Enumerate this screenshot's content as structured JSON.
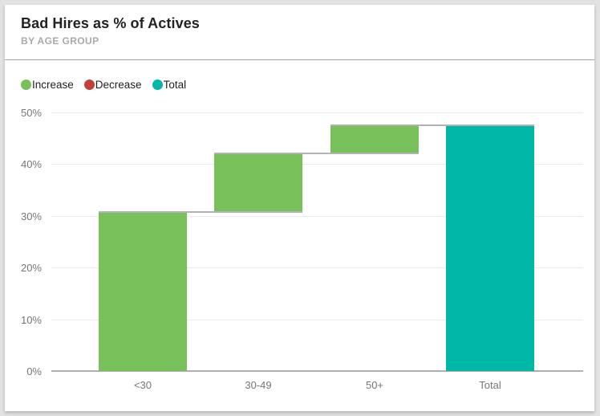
{
  "card": {
    "title": "Bad Hires as % of Actives",
    "subtitle": "BY AGE GROUP"
  },
  "legend": {
    "items": [
      {
        "name": "increase",
        "label": "Increase",
        "color": "#77c05a"
      },
      {
        "name": "decrease",
        "label": "Decrease",
        "color": "#c2423b"
      },
      {
        "name": "total",
        "label": "Total",
        "color": "#00b7a8"
      }
    ]
  },
  "chart_data": {
    "type": "bar",
    "variant": "waterfall",
    "title": "Bad Hires as % of Actives",
    "subtitle": "BY AGE GROUP",
    "categories": [
      "<30",
      "30-49",
      "50+",
      "Total"
    ],
    "steps": [
      {
        "category": "<30",
        "kind": "increase",
        "start": 0,
        "end": 30.8,
        "delta": 30.8
      },
      {
        "category": "30-49",
        "kind": "increase",
        "start": 30.8,
        "end": 42.1,
        "delta": 11.3
      },
      {
        "category": "50+",
        "kind": "increase",
        "start": 42.1,
        "end": 47.5,
        "delta": 5.4
      },
      {
        "category": "Total",
        "kind": "total",
        "start": 0,
        "end": 47.5,
        "delta": 47.5
      }
    ],
    "y_axis": {
      "unit": "%",
      "min": 0,
      "max": 50,
      "tick_values": [
        0,
        10,
        20,
        30,
        40,
        50
      ],
      "tick_labels": [
        "0%",
        "10%",
        "20%",
        "30%",
        "40%",
        "50%"
      ]
    },
    "colors": {
      "increase": "#77c05a",
      "decrease": "#c2423b",
      "total": "#00b7a8"
    },
    "grid": true,
    "legend_position": "top-left",
    "connectors": true
  }
}
